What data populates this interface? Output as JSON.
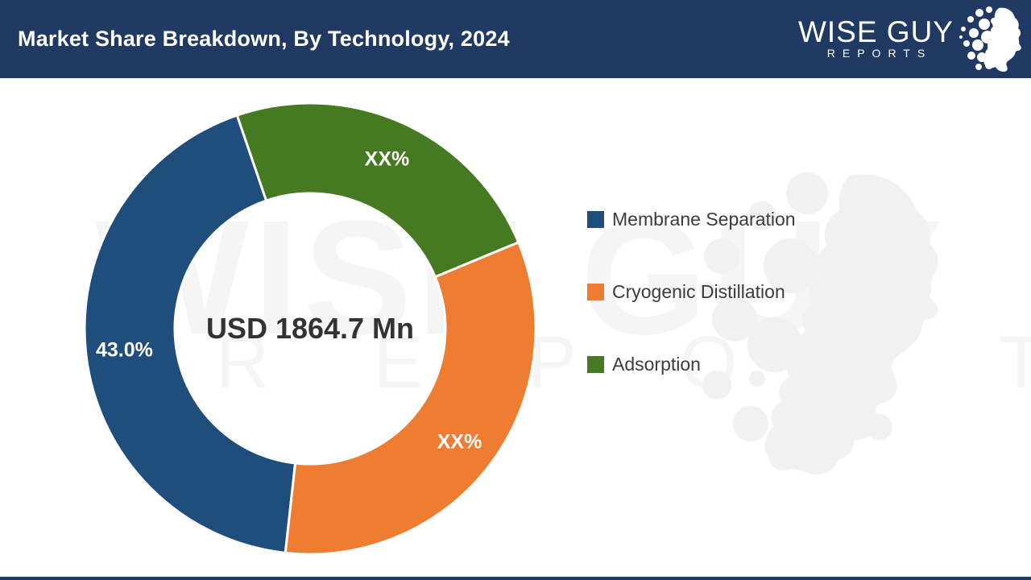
{
  "header": {
    "title": "Market Share Breakdown, By Technology, 2024",
    "logo": {
      "line1": "WISE GUY",
      "line2": "REPORTS"
    }
  },
  "watermark": {
    "line1": "WISE GUY",
    "line2": "REPORTS"
  },
  "chart_data": {
    "type": "pie",
    "subtype": "donut",
    "title": "Market Share Breakdown, By Technology, 2024",
    "center_label": "USD 1864.7 Mn",
    "start_angle_deg_cw_from_north": 186.3,
    "segments": [
      {
        "name": "Membrane Separation",
        "value_pct": 43.0,
        "label": "43.0%",
        "color": "#204E7C"
      },
      {
        "name": "Adsorption",
        "value_pct": 24.0,
        "label": "XX%",
        "color": "#467A22"
      },
      {
        "name": "Cryogenic Distillation",
        "value_pct": 33.0,
        "label": "XX%",
        "color": "#EE7D31"
      }
    ],
    "legend_position": "right",
    "legend_order_names": [
      "Membrane Separation",
      "Cryogenic Distillation",
      "Adsorption"
    ]
  },
  "colors": {
    "header_bg": "#213A63",
    "page_bg": "#FFFFFF",
    "legend_text": "#3C3C3C",
    "center_text": "#333333",
    "watermark": "#F5F5F5"
  }
}
